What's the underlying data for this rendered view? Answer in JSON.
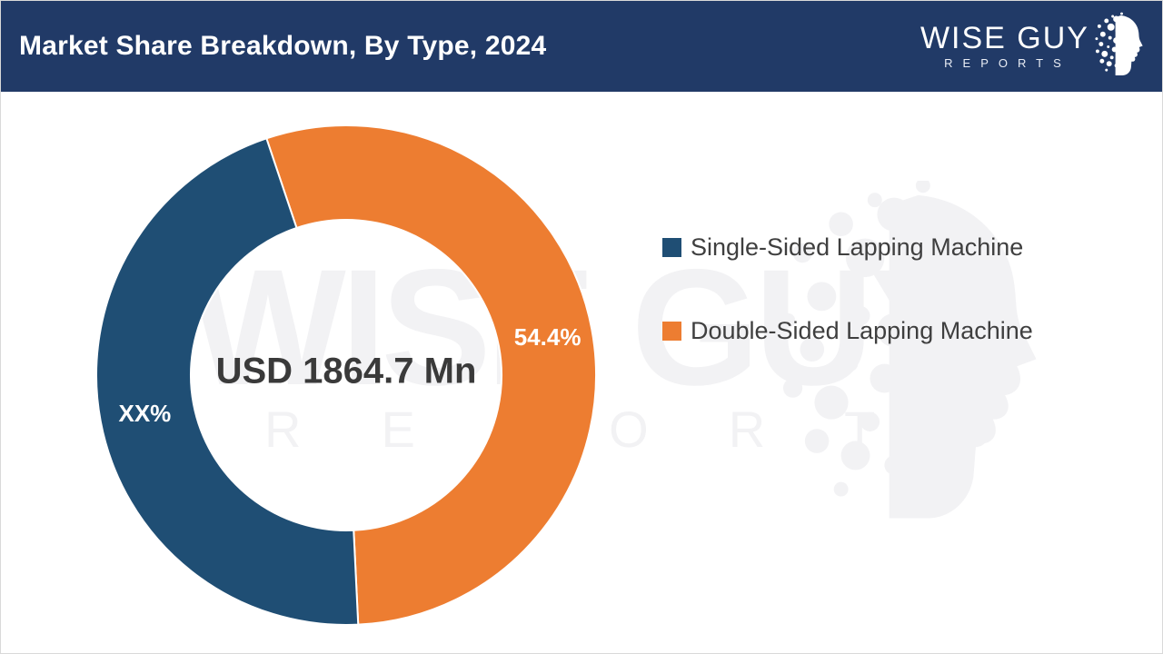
{
  "header": {
    "title": "Market Share Breakdown, By Type, 2024",
    "logo": {
      "line1": "WISE GUY",
      "line2": "REPORTS"
    }
  },
  "watermark": {
    "line1": "WISE GUY",
    "line2": "REPORTS"
  },
  "chart_data": {
    "type": "donut",
    "title": "Market Share Breakdown, By Type, 2024",
    "center_label": "USD 1864.7 Mn",
    "rotation_deg": -18.6,
    "donut_hole_ratio": 0.62,
    "legend_position": "right",
    "slices": [
      {
        "label": "Double-Sided Lapping Machine",
        "value_pct": 54.4,
        "display_label": "54.4%",
        "color": "#ed7d31"
      },
      {
        "label": "Single-Sided Lapping Machine",
        "value_pct": 45.6,
        "display_label": "XX%",
        "color": "#1f4e74"
      }
    ]
  },
  "colors": {
    "header_bg": "#213a67",
    "page_bg": "#ffffff",
    "border": "#d9d9d9",
    "legend_text": "#3f3f3f",
    "center_text": "#3a3a3a",
    "watermark": "#f2f2f4"
  }
}
